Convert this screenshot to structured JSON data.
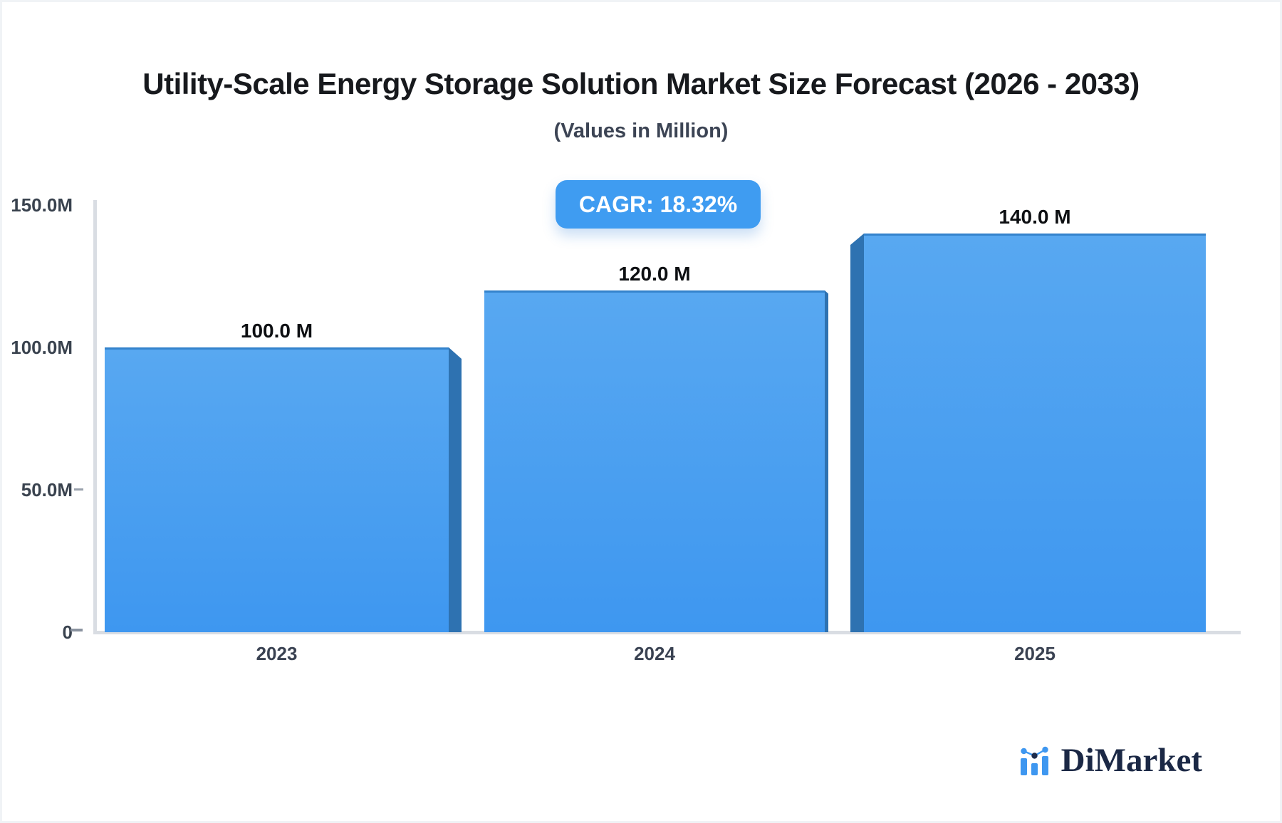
{
  "header": {
    "title": "Utility-Scale Energy Storage Solution Market Size Forecast (2026 - 2033)",
    "subtitle": "(Values in Million)",
    "cagr_badge": "CAGR: 18.32%"
  },
  "chart_data": {
    "type": "bar",
    "title": "Utility-Scale Energy Storage Solution Market Size Forecast (2026 - 2033)",
    "subtitle": "(Values in Million)",
    "annotation": "CAGR: 18.32%",
    "categories": [
      "2023",
      "2024",
      "2025"
    ],
    "values": [
      100,
      120,
      140
    ],
    "value_labels": [
      "100.0 M",
      "120.0 M",
      "140.0 M"
    ],
    "y_ticks": [
      {
        "label": "150.0M",
        "value": 150
      },
      {
        "label": "100.0M",
        "value": 100
      },
      {
        "label": "50.0M",
        "value": 50
      },
      {
        "label": "0",
        "value": 0
      }
    ],
    "ylim": [
      0,
      150
    ],
    "xlabel": "",
    "ylabel": "",
    "legend": "none",
    "grid": "off",
    "colors": {
      "bar_face_top": "#58A8F1",
      "bar_face_bottom": "#3E97F0",
      "bar_outline": "#2E7CC6",
      "bar_side_3d": "#2E72B1",
      "axis_line": "#D9DDE3",
      "tick_dash": "#99A1AC",
      "tick_label": "#39424e",
      "value_label": "#0d0f12",
      "badge_bg": "#3F9CF1"
    }
  },
  "branding": {
    "name": "DiMarket"
  }
}
